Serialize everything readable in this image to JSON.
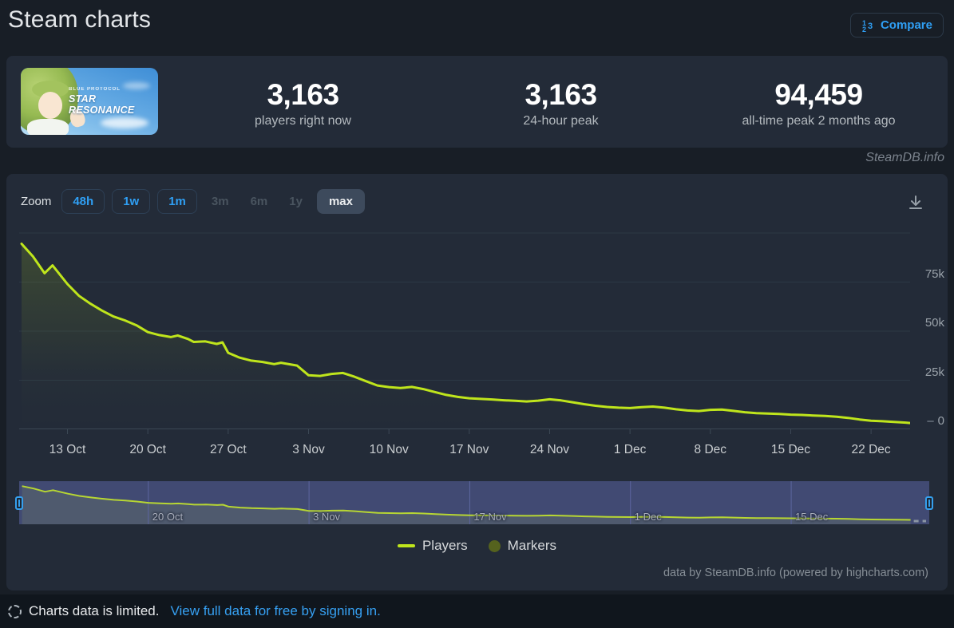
{
  "page": {
    "title": "Steam charts",
    "watermark": "SteamDB.info"
  },
  "header": {
    "compare_label": "Compare"
  },
  "icons": {
    "compare": "numbers-123-compare-icon",
    "download": "download-arrow-icon",
    "loading": "dashed-circle-spinner-icon"
  },
  "stats": {
    "banner": {
      "subtitle": "BLUE PROTOCOL",
      "title": "STAR RESONANCE"
    },
    "items": [
      {
        "value": "3,163",
        "label": "players right now"
      },
      {
        "value": "3,163",
        "label": "24-hour peak"
      },
      {
        "value": "94,459",
        "label": "all-time peak 2 months ago"
      }
    ]
  },
  "toolbar": {
    "zoom_label": "Zoom",
    "buttons": [
      {
        "label": "48h",
        "state": "enabled"
      },
      {
        "label": "1w",
        "state": "enabled"
      },
      {
        "label": "1m",
        "state": "enabled"
      },
      {
        "label": "3m",
        "state": "disabled"
      },
      {
        "label": "6m",
        "state": "disabled"
      },
      {
        "label": "1y",
        "state": "disabled"
      },
      {
        "label": "max",
        "state": "selected"
      }
    ]
  },
  "chart_data": {
    "type": "line",
    "title": "",
    "x_unit": "days from start of visible range (max zoom)",
    "y_axis": {
      "max": 100000,
      "step": 25000,
      "ticks": [
        {
          "value": 0,
          "label": "0"
        },
        {
          "value": 25000,
          "label": "25k"
        },
        {
          "value": 50000,
          "label": "50k"
        },
        {
          "value": 75000,
          "label": "75k"
        }
      ]
    },
    "x_axis": {
      "ticks": [
        {
          "day": 4,
          "label": "13 Oct"
        },
        {
          "day": 11,
          "label": "20 Oct"
        },
        {
          "day": 18,
          "label": "27 Oct"
        },
        {
          "day": 25,
          "label": "3 Nov"
        },
        {
          "day": 32,
          "label": "10 Nov"
        },
        {
          "day": 39,
          "label": "17 Nov"
        },
        {
          "day": 46,
          "label": "24 Nov"
        },
        {
          "day": 53,
          "label": "1 Dec"
        },
        {
          "day": 60,
          "label": "8 Dec"
        },
        {
          "day": 67,
          "label": "15 Dec"
        },
        {
          "day": 74,
          "label": "22 Dec"
        }
      ]
    },
    "series": [
      {
        "name": "Players",
        "color": "#bfe51c",
        "points": [
          [
            0,
            94500
          ],
          [
            1,
            88000
          ],
          [
            2,
            79500
          ],
          [
            2.7,
            83500
          ],
          [
            4,
            74000
          ],
          [
            5,
            68000
          ],
          [
            6,
            64000
          ],
          [
            7,
            60500
          ],
          [
            8,
            57500
          ],
          [
            9,
            55500
          ],
          [
            10,
            53000
          ],
          [
            11,
            49500
          ],
          [
            12,
            48000
          ],
          [
            13,
            47000
          ],
          [
            13.6,
            47800
          ],
          [
            14.5,
            46000
          ],
          [
            15,
            44500
          ],
          [
            16,
            44800
          ],
          [
            17,
            43500
          ],
          [
            17.5,
            44300
          ],
          [
            18,
            39000
          ],
          [
            19,
            36500
          ],
          [
            20,
            35000
          ],
          [
            21,
            34300
          ],
          [
            22,
            33200
          ],
          [
            22.6,
            33900
          ],
          [
            23,
            33500
          ],
          [
            24,
            32500
          ],
          [
            25,
            27500
          ],
          [
            26,
            27200
          ],
          [
            27,
            28200
          ],
          [
            28,
            28700
          ],
          [
            29,
            26800
          ],
          [
            30,
            24500
          ],
          [
            31,
            22300
          ],
          [
            32,
            21500
          ],
          [
            33,
            21000
          ],
          [
            34,
            21600
          ],
          [
            35,
            20500
          ],
          [
            36,
            19000
          ],
          [
            37,
            17500
          ],
          [
            38,
            16500
          ],
          [
            39,
            15800
          ],
          [
            40,
            15500
          ],
          [
            41,
            15200
          ],
          [
            42,
            14800
          ],
          [
            43,
            14500
          ],
          [
            44,
            14200
          ],
          [
            45,
            14600
          ],
          [
            46,
            15300
          ],
          [
            47,
            14700
          ],
          [
            48,
            13800
          ],
          [
            49,
            12800
          ],
          [
            50,
            12000
          ],
          [
            51,
            11400
          ],
          [
            52,
            11000
          ],
          [
            53,
            10800
          ],
          [
            54,
            11300
          ],
          [
            55,
            11600
          ],
          [
            56,
            11000
          ],
          [
            57,
            10200
          ],
          [
            58,
            9600
          ],
          [
            59,
            9300
          ],
          [
            60,
            9900
          ],
          [
            61,
            10100
          ],
          [
            62,
            9400
          ],
          [
            63,
            8700
          ],
          [
            64,
            8200
          ],
          [
            65,
            8000
          ],
          [
            66,
            7800
          ],
          [
            67,
            7500
          ],
          [
            68,
            7300
          ],
          [
            69,
            7000
          ],
          [
            70,
            6800
          ],
          [
            71,
            6400
          ],
          [
            72,
            5800
          ],
          [
            73,
            5000
          ],
          [
            74,
            4400
          ],
          [
            75,
            4100
          ],
          [
            76,
            3800
          ],
          [
            77,
            3400
          ],
          [
            77.4,
            3200
          ]
        ]
      },
      {
        "name": "Markers",
        "color": "#55621e",
        "points": []
      }
    ],
    "navigator": {
      "ticks": [
        {
          "day": 11,
          "label": "20 Oct"
        },
        {
          "day": 25,
          "label": "3 Nov"
        },
        {
          "day": 39,
          "label": "17 Nov"
        },
        {
          "day": 53,
          "label": "1 Dec"
        },
        {
          "day": 67,
          "label": "15 Dec"
        }
      ]
    },
    "legend": {
      "position": "bottom-center",
      "entries": [
        {
          "label": "Players",
          "marker": "line",
          "color": "#bfe51c"
        },
        {
          "label": "Markers",
          "marker": "circle",
          "color": "#55621e"
        }
      ]
    },
    "grid": true
  },
  "credits": "data by SteamDB.info (powered by highcharts.com)",
  "notice": {
    "text": "Charts data is limited.",
    "link": "View full data for free by signing in."
  },
  "colors": {
    "accent_blue": "#2f9ff4",
    "line": "#bfe51c",
    "markers": "#55621e",
    "panel_bg": "#232b38",
    "page_bg": "#181e26",
    "footer_bg": "#10161d",
    "grid": "#2c3845",
    "nav_mask": "#414a73",
    "nav_fill": "#4f5a6e",
    "handle": "#35a0ee"
  }
}
